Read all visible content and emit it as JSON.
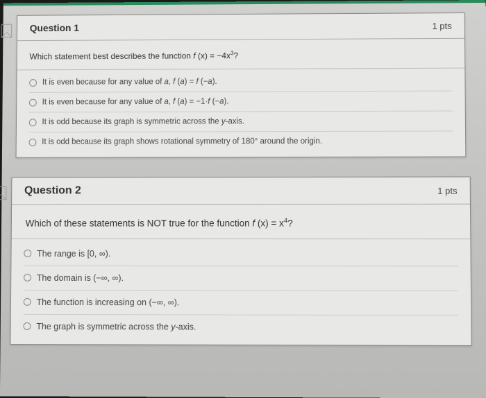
{
  "questions": [
    {
      "title": "Question 1",
      "pts": "1 pts",
      "prompt_html": "Which statement best describes the function <span class='italic'>f</span> (x) = −4x<sup>3</sup>?",
      "options": [
        "It is even because for any value of <span class='italic'>a</span>, <span class='italic'>f</span> (<span class='italic'>a</span>) = <span class='italic'>f</span> (−<span class='italic'>a</span>).",
        "It is even because for any value of <span class='italic'>a</span>, <span class='italic'>f</span> (<span class='italic'>a</span>) = −1·<span class='italic'>f</span> (−<span class='italic'>a</span>).",
        "It is odd because its graph is symmetric across the <span class='italic'>y</span>-axis.",
        "It is odd because its graph shows rotational symmetry of 180° around the origin."
      ]
    },
    {
      "title": "Question 2",
      "pts": "1 pts",
      "prompt_html": "Which of these statements is NOT true for the function <span class='italic'>f</span> (x) = x<sup>4</sup>?",
      "options": [
        "The range is [0, ∞).",
        "The domain is (−∞, ∞).",
        "The function is increasing on (−∞, ∞).",
        "The graph is symmetric across the <span class='italic'>y</span>-axis."
      ]
    }
  ]
}
